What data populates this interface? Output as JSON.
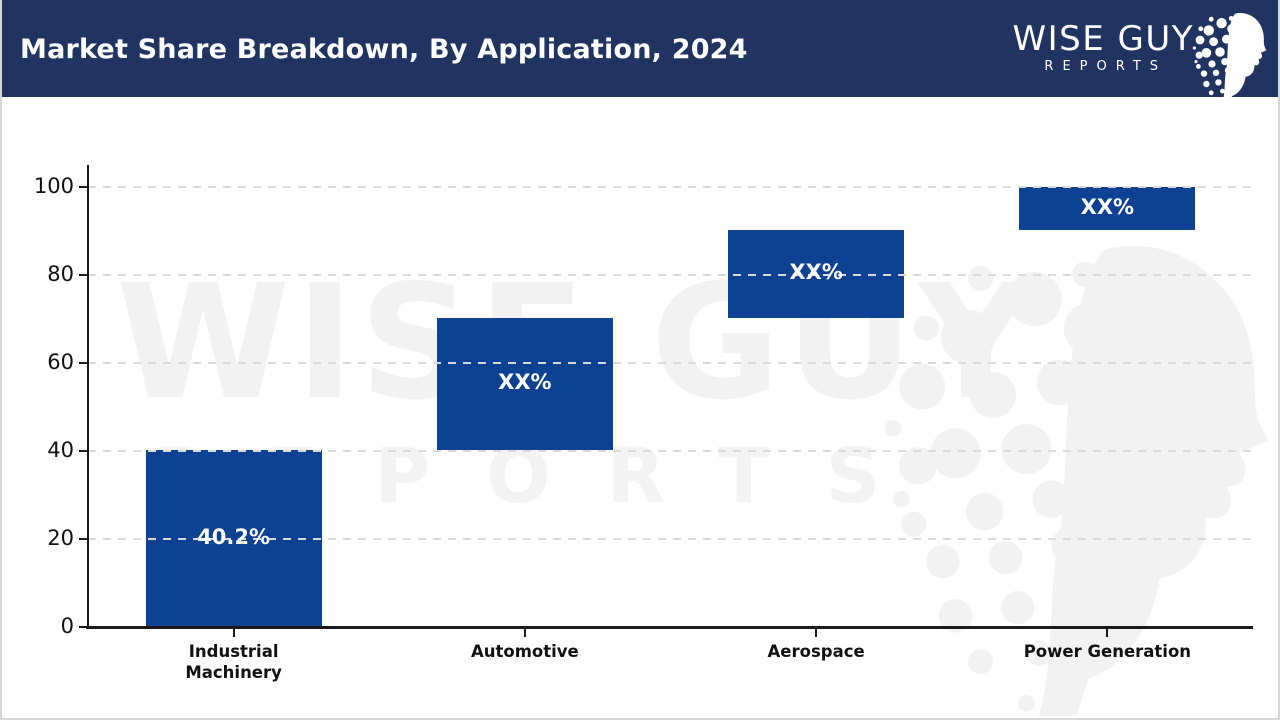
{
  "header": {
    "title": "Market Share Breakdown, By Application, 2024",
    "logo": {
      "line1": "WISE GUY",
      "line2": "REPORTS"
    }
  },
  "watermark": {
    "line1": "WISE GUY",
    "line2": "REPORTS"
  },
  "chart_data": {
    "type": "bar",
    "subtype": "floating-waterfall",
    "title": "Market Share Breakdown, By Application, 2024",
    "categories": [
      "Industrial\nMachinery",
      "Automotive",
      "Aerospace",
      "Power Generation"
    ],
    "segments": [
      {
        "category": "Industrial\nMachinery",
        "start": 0,
        "end": 40.2,
        "label": "40.2%"
      },
      {
        "category": "Automotive",
        "start": 40.2,
        "end": 70.3,
        "label": "XX%"
      },
      {
        "category": "Aerospace",
        "start": 70.3,
        "end": 90.2,
        "label": "XX%"
      },
      {
        "category": "Power Generation",
        "start": 90.2,
        "end": 100,
        "label": "XX%"
      }
    ],
    "yticks": [
      0,
      20,
      40,
      60,
      80,
      100
    ],
    "ylim": [
      0,
      105
    ],
    "xlabel": "",
    "ylabel": "",
    "grid": "dashed-horizontal",
    "legend": "none",
    "bar_color": "#0d4191",
    "bar_label_color": "#ffffff",
    "axis_color": "#1a1a1a",
    "gridline_color": "#d9d9d9"
  },
  "colors": {
    "header_bg": "#1f3461",
    "page_bg": "#ffffff",
    "watermark": "#f2f2f2",
    "border": "#d6d6d6"
  }
}
